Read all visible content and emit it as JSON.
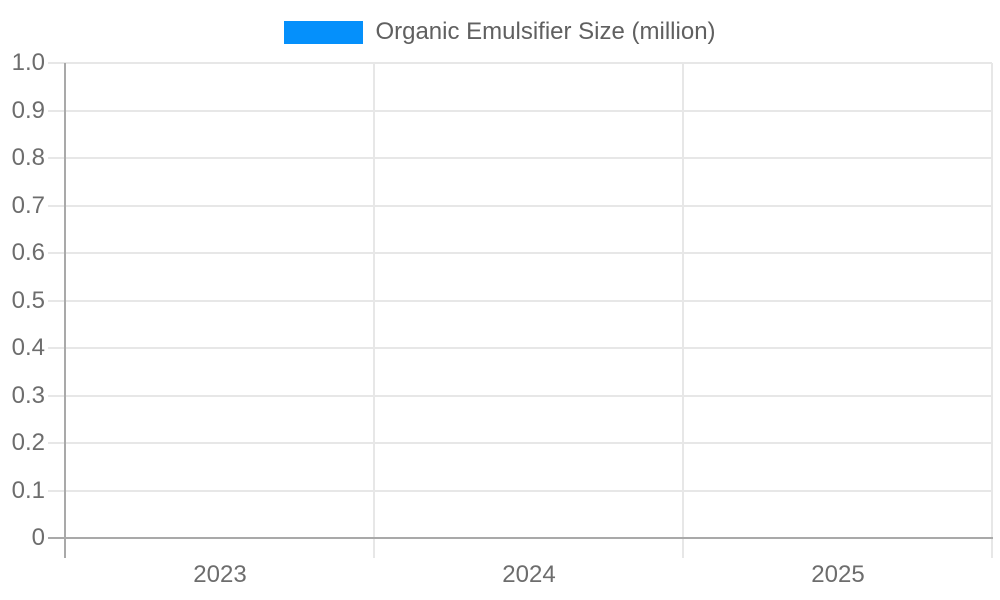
{
  "chart_data": {
    "type": "bar",
    "title": "Organic Emulsifier Size (million)",
    "legend": {
      "label": "Organic Emulsifier Size (million)",
      "color": "#0590FB",
      "position": "top"
    },
    "categories": [
      "2023",
      "2024",
      "2025"
    ],
    "series": [
      {
        "name": "Organic Emulsifier Size (million)",
        "values": []
      }
    ],
    "xlabel": "",
    "ylabel": "",
    "ylim": [
      0,
      1.0
    ],
    "ytick_step": 0.1,
    "y_ticks": [
      "1.0",
      "0.9",
      "0.8",
      "0.7",
      "0.6",
      "0.5",
      "0.4",
      "0.3",
      "0.2",
      "0.1",
      "0"
    ],
    "grid": true,
    "colors": {
      "accent": "#0590FB",
      "grid_line": "#e7e7e7",
      "axis_line": "#a9a9a9",
      "tick_label": "#6d6d6d",
      "legend_text": "#606060"
    }
  }
}
